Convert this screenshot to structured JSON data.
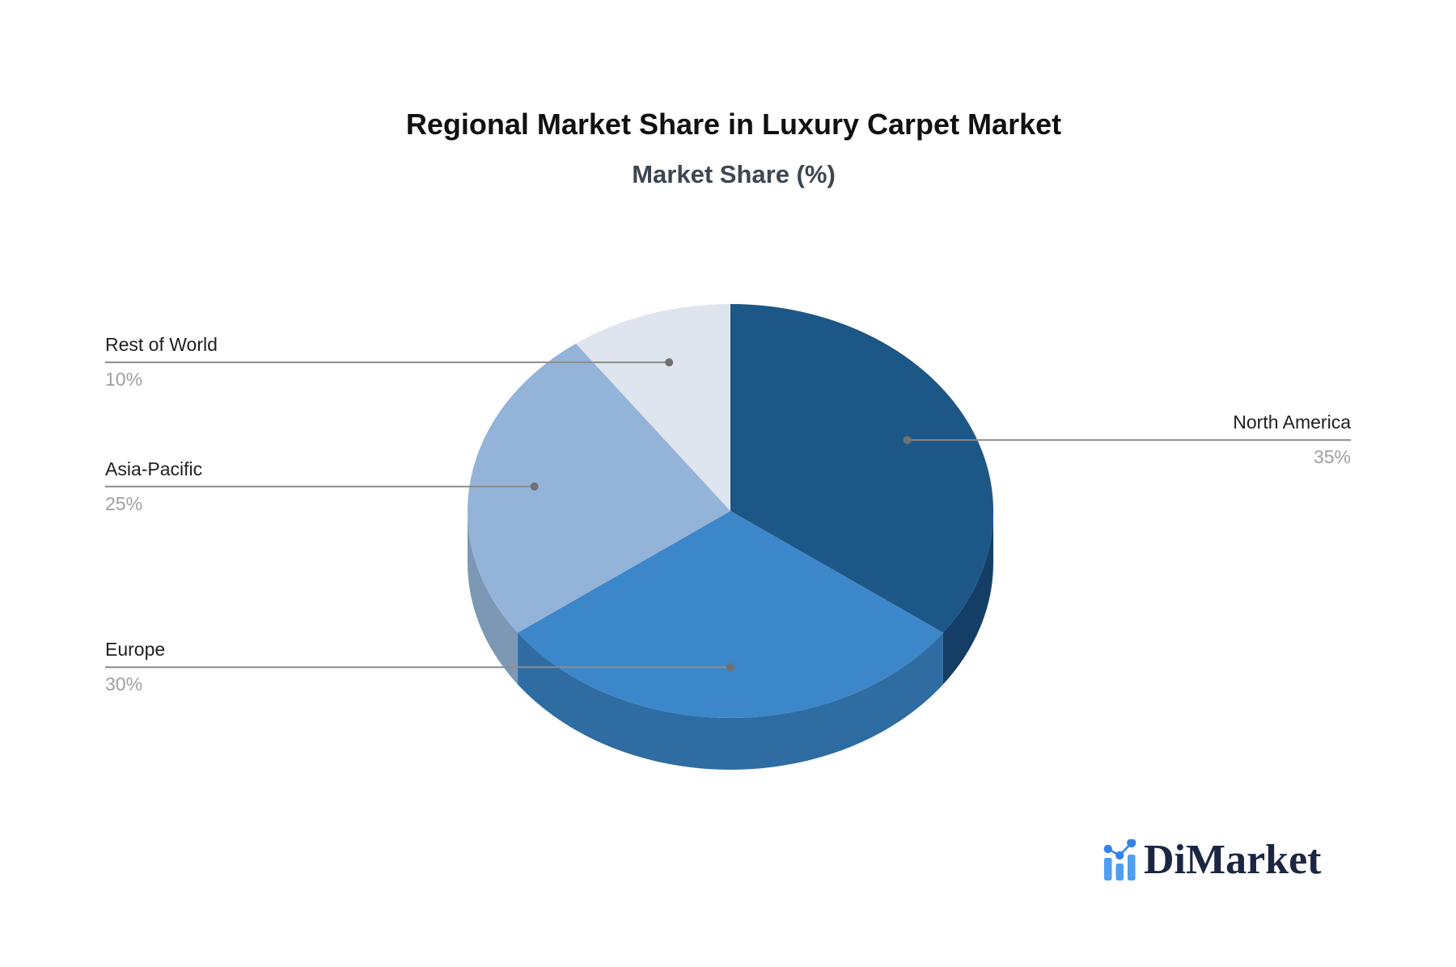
{
  "chart_data": {
    "type": "pie",
    "title": "Regional Market Share in Luxury Carpet Market",
    "subtitle": "Market Share (%)",
    "unit": "%",
    "start_angle_deg": 0,
    "direction": "clockwise",
    "legend_position": "callout-labels",
    "effect": "3d",
    "slices": [
      {
        "label": "North America",
        "value": 35,
        "pct": "35%",
        "color": "#1d5787",
        "side_color": "#143e66",
        "callout_side": "right"
      },
      {
        "label": "Europe",
        "value": 30,
        "pct": "30%",
        "color": "#3c87c9",
        "side_color": "#2e6ca2",
        "callout_side": "left"
      },
      {
        "label": "Asia-Pacific",
        "value": 25,
        "pct": "25%",
        "color": "#93b3d9",
        "side_color": "#7d98b5",
        "callout_side": "left"
      },
      {
        "label": "Rest of World",
        "value": 10,
        "pct": "10%",
        "color": "#dee5ee",
        "side_color": "#b9c6d6",
        "callout_side": "left"
      }
    ]
  },
  "logo": {
    "text": "DiMarket",
    "icon": "bar-line-chart-icon",
    "icon_bar_color": "#4f9ef3",
    "icon_dot_color": "#3584ee",
    "text_color": "#1b2742"
  },
  "styles": {
    "background": "#ffffff",
    "title_color": "#111111",
    "subtitle_color": "#3d4651",
    "callout_line_color": "#8b8b8b",
    "callout_dot_color": "#717171",
    "label_color": "#1f1f1f",
    "pct_color": "#a0a0a0"
  }
}
